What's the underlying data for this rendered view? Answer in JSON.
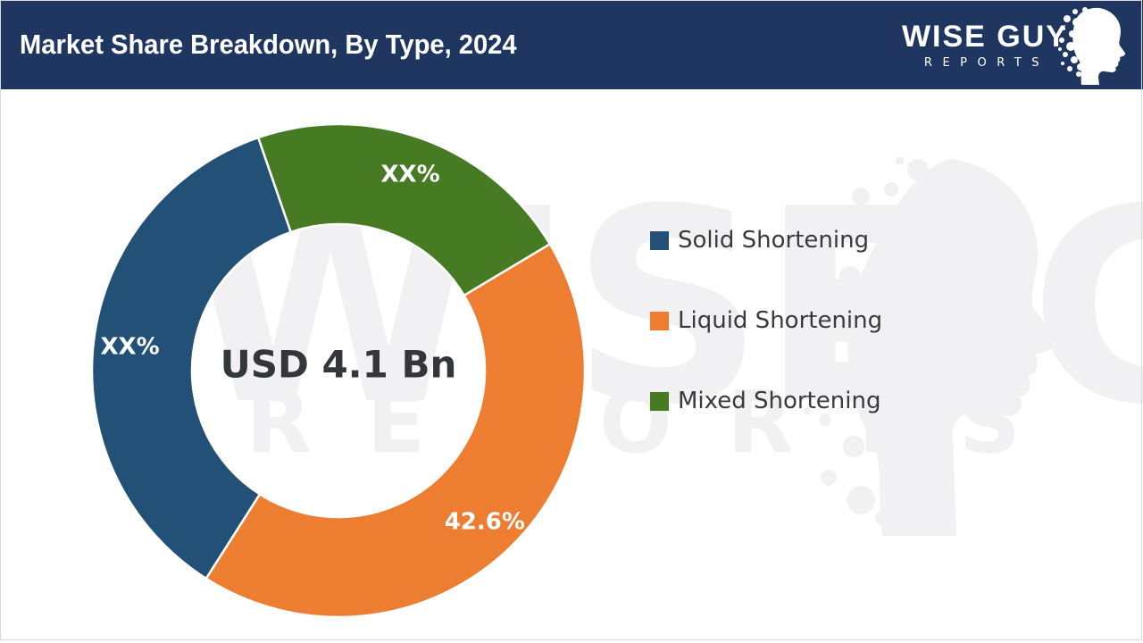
{
  "header": {
    "title": "Market Share Breakdown, By Type, 2024",
    "bg_color": "#1f3660",
    "logo": {
      "wordmark": "WISE GUY",
      "subtext": "REPORTS"
    }
  },
  "watermark": {
    "wordmark": "WISE GUY",
    "subtext": "REPORTS"
  },
  "chart_data": {
    "type": "pie",
    "subtype": "donut",
    "title": "Market Share Breakdown, By Type, 2024",
    "center_label": "USD 4.1 Bn",
    "start_angle_deg": 109,
    "direction": "clockwise",
    "legend_position": "right",
    "slices": [
      {
        "name": "Mixed Shortening",
        "display_label": "XX%",
        "pct_drawn_estimate": 21.7,
        "color": "#467a23"
      },
      {
        "name": "Liquid Shortening",
        "display_label": "42.6%",
        "pct_drawn_estimate": 42.6,
        "color": "#ed7d31"
      },
      {
        "name": "Solid Shortening",
        "display_label": "XX%",
        "pct_drawn_estimate": 35.7,
        "color": "#235077"
      }
    ]
  },
  "legend": {
    "items": [
      {
        "label": "Solid Shortening",
        "color": "#235077"
      },
      {
        "label": "Liquid Shortening",
        "color": "#ed7d31"
      },
      {
        "label": "Mixed Shortening",
        "color": "#467a23"
      }
    ]
  },
  "colors": {
    "watermark_gray": "#f1f1f3",
    "center_text": "#33363b"
  }
}
